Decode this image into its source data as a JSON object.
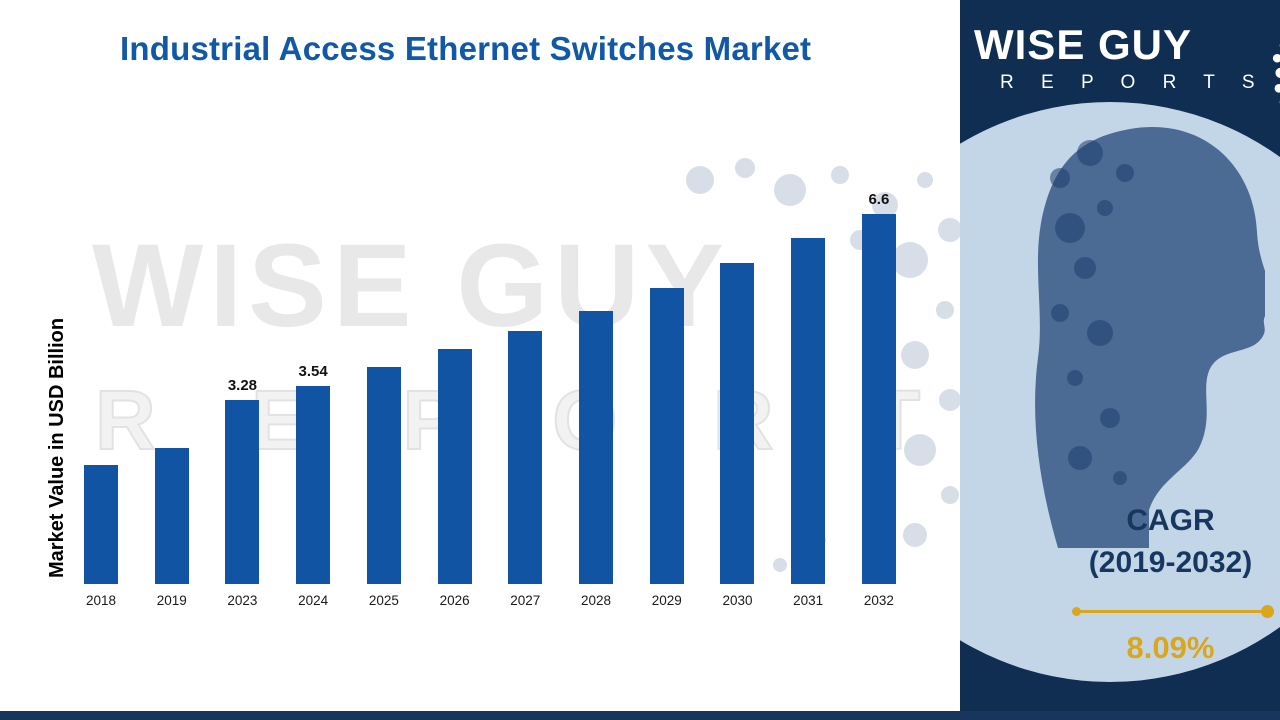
{
  "title": "Industrial Access Ethernet Switches Market",
  "y_axis_label": "Market Value in USD Billion",
  "watermark": {
    "line1": "WISE GUY",
    "line2": "R E P O R T S"
  },
  "logo": {
    "line1": "WISE GUY",
    "line2": "R E P O R T S"
  },
  "cagr": {
    "label": "CAGR",
    "range": "(2019-2032)",
    "value": "8.09%"
  },
  "colors": {
    "title_blue": "#1159a6",
    "bar_blue": "#1254a4",
    "panel_navy": "#102e52",
    "circle_light_blue": "#c3d6e7",
    "gold": "#d9a61d",
    "cagr_navy": "#17375f"
  },
  "chart_data": {
    "type": "bar",
    "title": "Industrial Access Ethernet Switches Market",
    "xlabel": "",
    "ylabel": "Market Value in USD Billion",
    "categories": [
      "2018",
      "2019",
      "2023",
      "2024",
      "2025",
      "2026",
      "2027",
      "2028",
      "2029",
      "2030",
      "2031",
      "2032"
    ],
    "values": [
      2.13,
      2.42,
      3.28,
      3.54,
      3.87,
      4.2,
      4.52,
      4.88,
      5.28,
      5.73,
      6.18,
      6.6
    ],
    "value_labels": [
      "",
      "",
      "3.28",
      "3.54",
      "",
      "",
      "",
      "",
      "",
      "",
      "",
      "6.6"
    ],
    "ylim": [
      0,
      7
    ],
    "grid": false,
    "legend": "none",
    "bar_color": "#1254a4"
  }
}
